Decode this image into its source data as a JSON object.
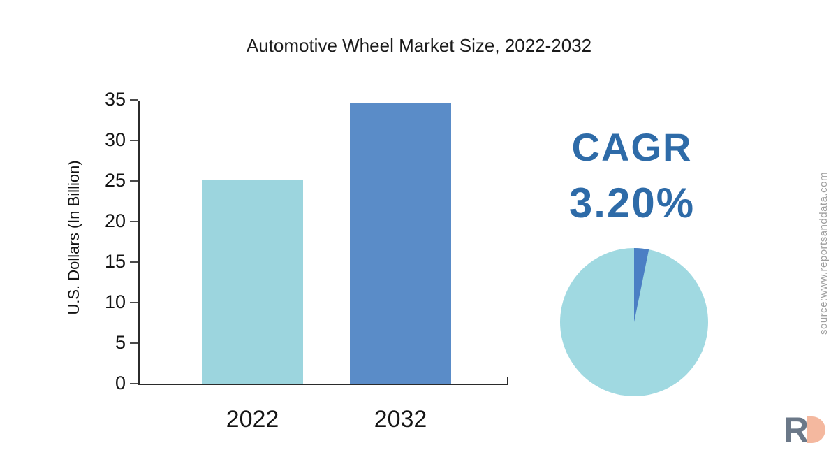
{
  "title": "Automotive Wheel Market Size, 2022-2032",
  "chart_data": {
    "type": "bar",
    "title": "Automotive Wheel Market Size, 2022-2032",
    "categories": [
      "2022",
      "2032"
    ],
    "values": [
      25.2,
      34.6
    ],
    "xlabel": "",
    "ylabel": "U.S. Dollars (In Billion)",
    "ylim": [
      0,
      35
    ],
    "ytick_step": 5,
    "grid": false,
    "legend": "none",
    "bar_colors": [
      "#9cd5de",
      "#5a8cc8"
    ]
  },
  "cagr": {
    "label": "CAGR",
    "value": "3.20%",
    "percent": 3.2,
    "color": "#2e6ba8"
  },
  "pie": {
    "type": "pie",
    "slice_percent": 3.2,
    "base_percent": 96.8,
    "base_color": "#a0d9e1",
    "slice_color": "#4b7fc4"
  },
  "source": {
    "text": "source:www.reportsanddata.com",
    "color": "#9e9e9e"
  },
  "logo": {
    "letter": "R",
    "letter_color": "#6b7888",
    "d_color": "#f4b89f"
  }
}
